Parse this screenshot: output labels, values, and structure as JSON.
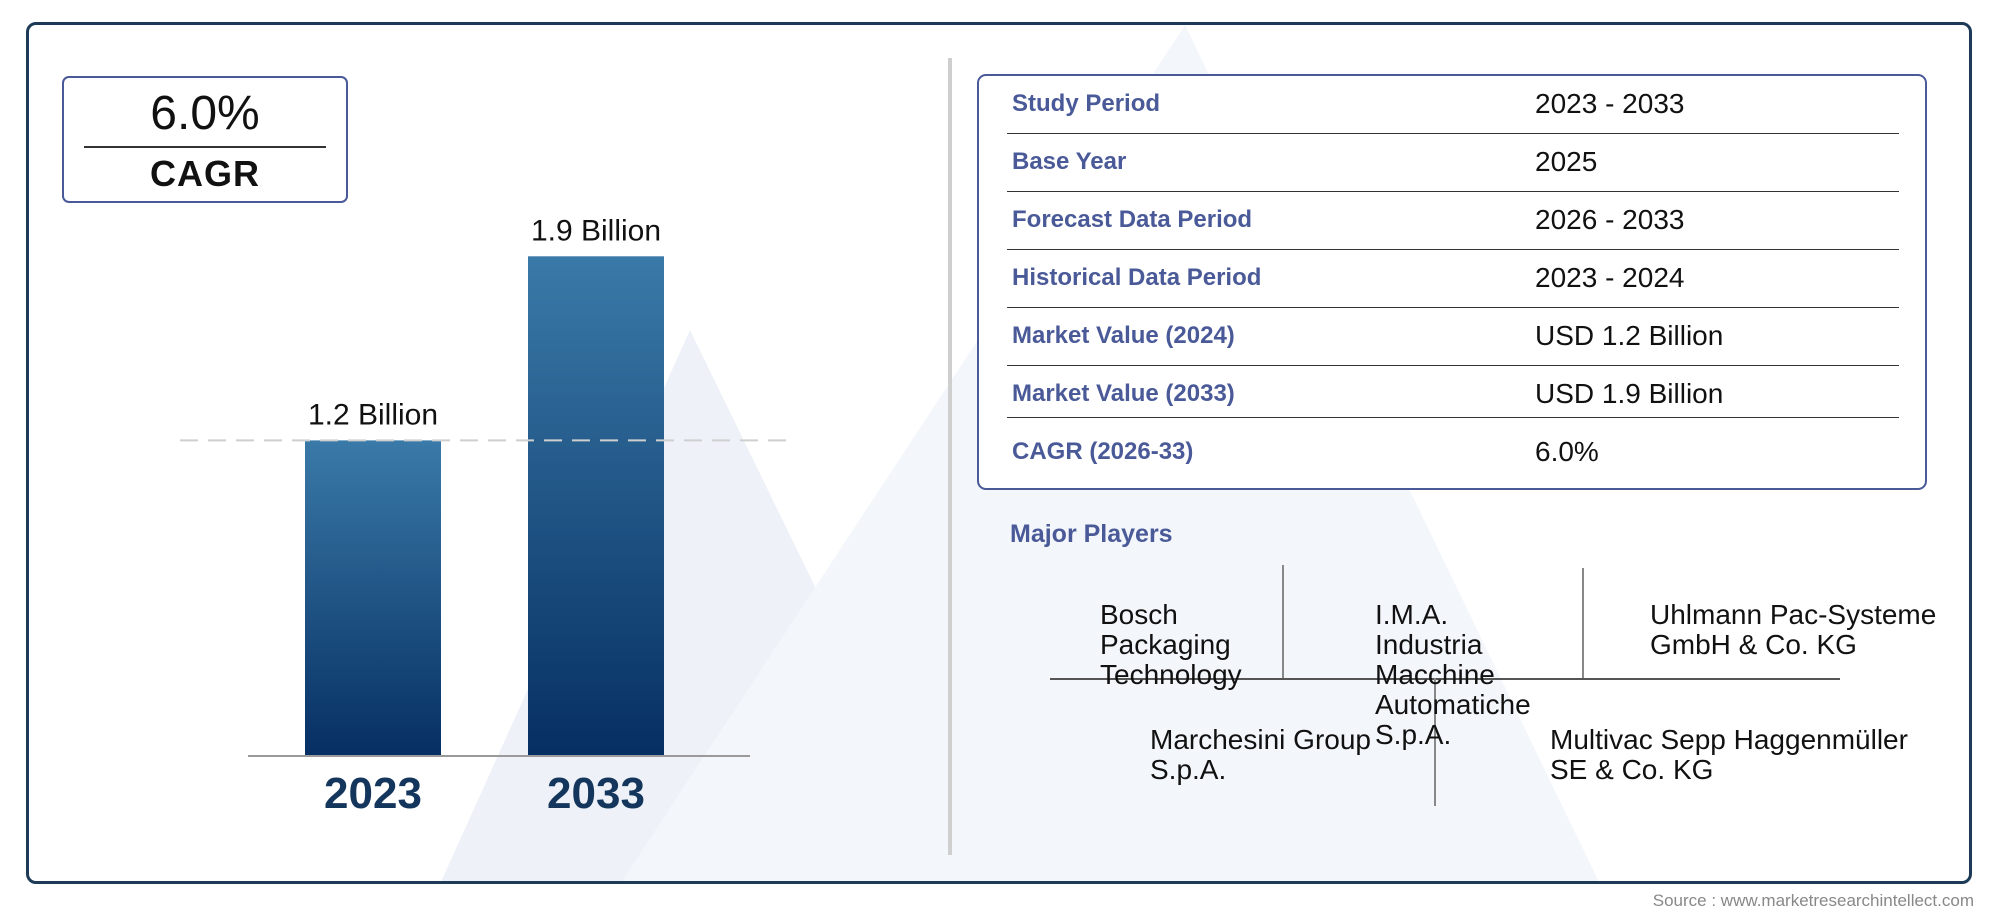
{
  "cagr_box": {
    "value": "6.0%",
    "label": "CAGR"
  },
  "chart_data": {
    "type": "bar",
    "categories": [
      "2023",
      "2033"
    ],
    "values": [
      1.2,
      1.9
    ],
    "data_labels": [
      "1.2 Billion",
      "1.9 Billion"
    ],
    "colors": {
      "bar_top": "#3a7aa8",
      "bar_bottom": "#062f63",
      "year_text": "#14365c"
    },
    "reference_line_at": 1.2,
    "grid": false
  },
  "table": {
    "rows": [
      {
        "key": "Study Period",
        "value": "2023 - 2033"
      },
      {
        "key": "Base Year",
        "value": "2025"
      },
      {
        "key": "Forecast Data Period",
        "value": "2026 - 2033"
      },
      {
        "key": "Historical Data Period",
        "value": "2023 - 2024"
      },
      {
        "key": "Market Value (2024)",
        "value": "USD 1.2 Billion"
      },
      {
        "key": "Market Value (2033)",
        "value": "USD 1.9 Billion"
      },
      {
        "key": "CAGR (2026-33)",
        "value": "6.0%"
      }
    ]
  },
  "players": {
    "title": "Major Players",
    "list": [
      "Bosch Packaging Technology",
      "I.M.A. Industria Macchine Automatiche S.p.A.",
      "Uhlmann Pac-Systeme GmbH & Co. KG",
      "Marchesini Group S.p.A.",
      "Multivac Sepp Haggenmüller SE & Co. KG"
    ]
  },
  "source": "Source : www.marketresearchintellect.com",
  "theme": {
    "accent": "#4a5a98",
    "frame": "#1d3a57"
  }
}
